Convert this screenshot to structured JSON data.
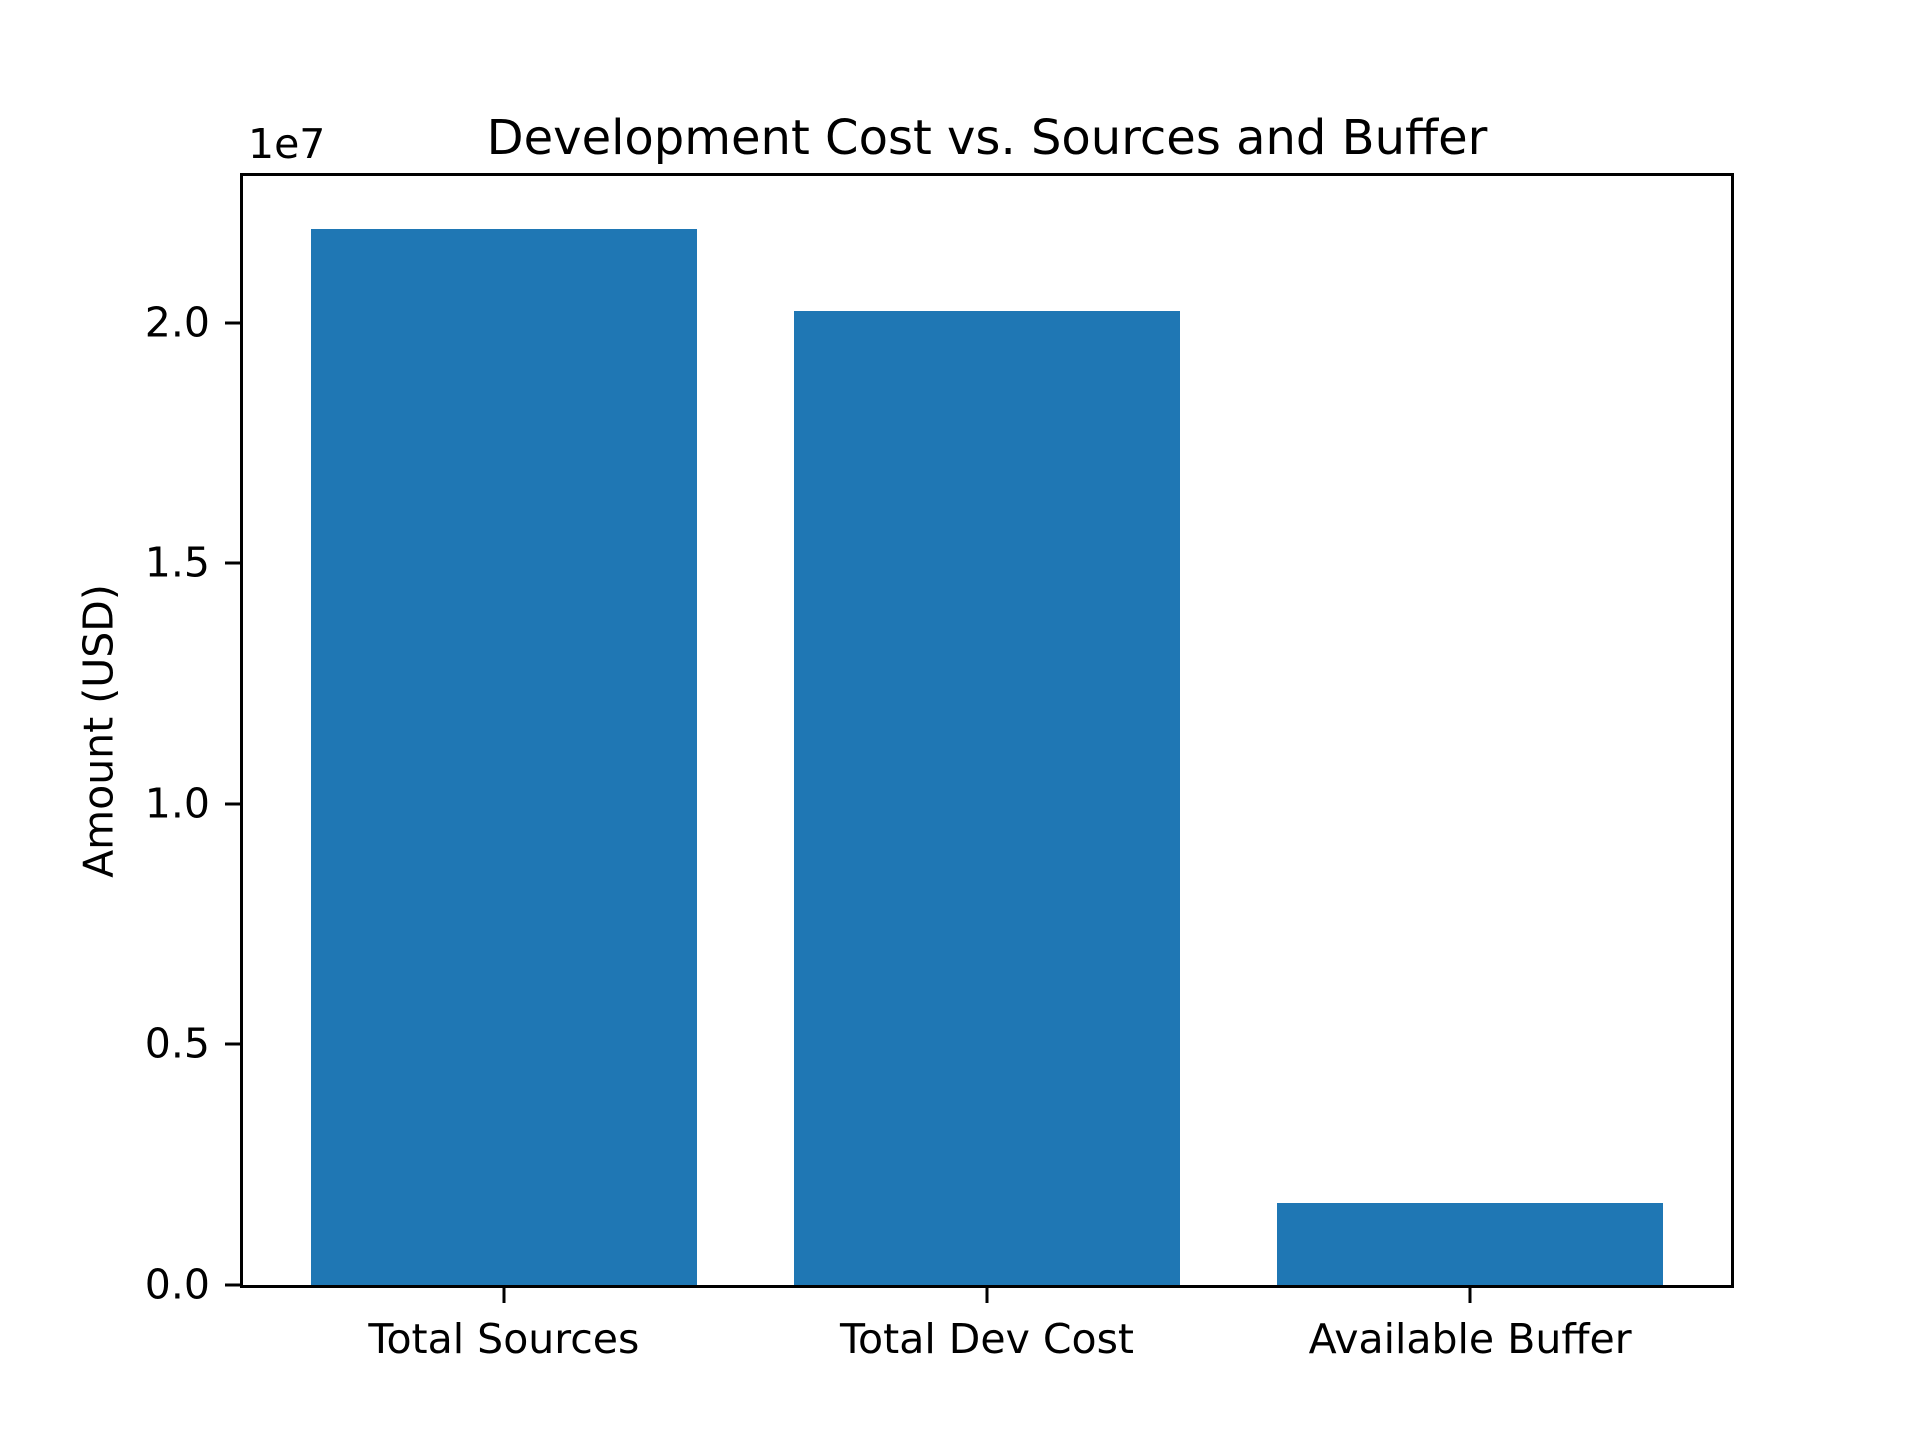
{
  "chart_data": {
    "type": "bar",
    "title": "Development Cost vs. Sources and Buffer",
    "ylabel": "Amount (USD)",
    "xlabel": "",
    "categories": [
      "Total Sources",
      "Total Dev Cost",
      "Available Buffer"
    ],
    "values": [
      21950000,
      20250000,
      1700000
    ],
    "bar_color": "#1f77b4",
    "bar_width_units": 0.8,
    "xlim": [
      -0.54,
      2.54
    ],
    "ylim": [
      0,
      23047500
    ],
    "yticks": [
      0,
      5000000,
      10000000,
      15000000,
      20000000
    ],
    "ytick_labels": [
      "0.0",
      "0.5",
      "1.0",
      "1.5",
      "2.0"
    ],
    "y_offset_text": "1e7",
    "grid": false,
    "legend": null
  }
}
